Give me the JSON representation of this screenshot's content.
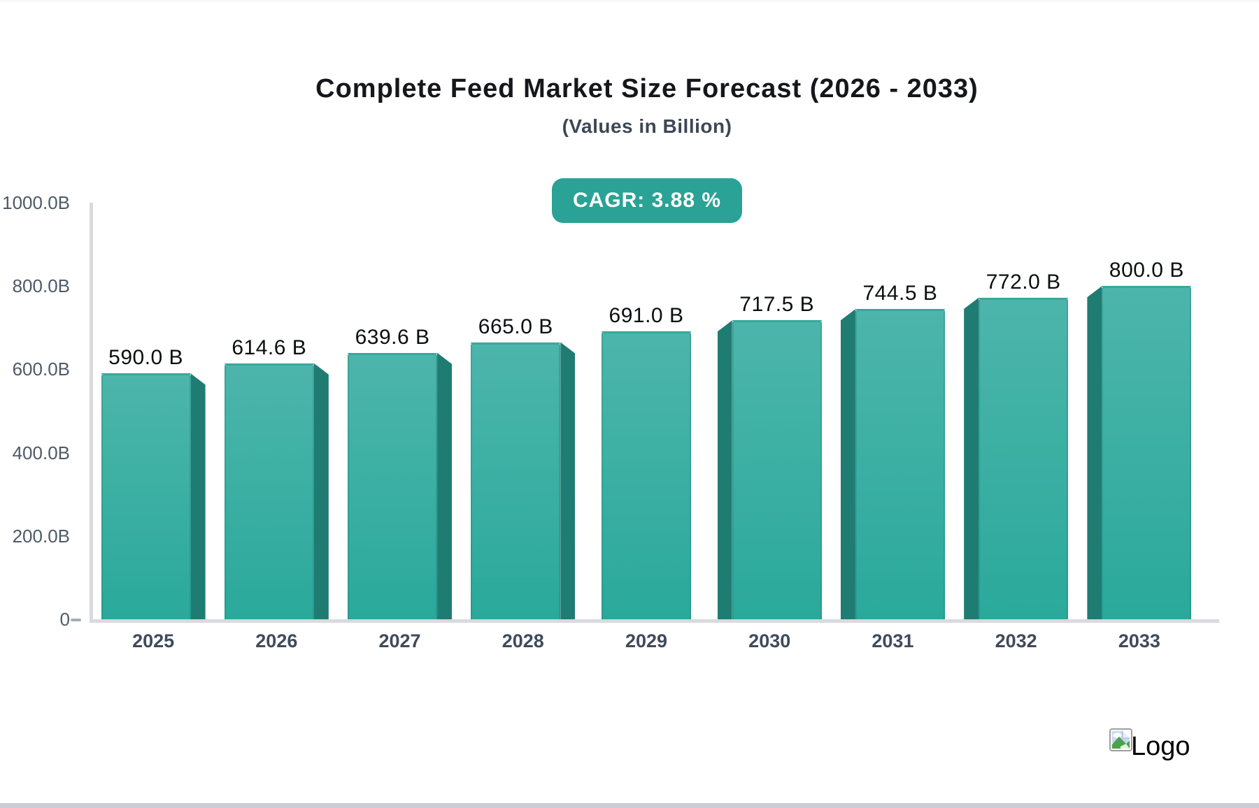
{
  "page": {
    "background": "#ffffff",
    "top_strip_color": "#f6f8fa",
    "bottom_bar_color": "#cccdd2"
  },
  "header": {
    "title": "Complete Feed Market Size Forecast (2026 - 2033)",
    "subtitle": "(Values in Billion)",
    "cagr_badge": "CAGR: 3.88 %",
    "badge_color": "#2aa296"
  },
  "footer": {
    "logo_alt_text": "Logo"
  },
  "chart_data": {
    "type": "bar",
    "title": "Complete Feed Market Size Forecast (2026 - 2033)",
    "subtitle": "(Values in Billion)",
    "unit": "Billion",
    "cagr_percent": 3.88,
    "categories": [
      "2025",
      "2026",
      "2027",
      "2028",
      "2029",
      "2030",
      "2031",
      "2032",
      "2033"
    ],
    "values": [
      590.0,
      614.6,
      639.6,
      665.0,
      691.0,
      717.5,
      744.5,
      772.0,
      800.0
    ],
    "bar_labels": [
      "590.0 B",
      "614.6 B",
      "639.6 B",
      "665.0 B",
      "691.0 B",
      "717.5 B",
      "744.5 B",
      "772.0 B",
      "800.0 B"
    ],
    "yticks": {
      "values": [
        1000,
        800,
        600,
        400,
        200,
        0
      ],
      "labels": [
        "1000.0B",
        "800.0B",
        "600.0B",
        "400.0B",
        "200.0B",
        "0"
      ]
    },
    "ylim": [
      0,
      1000
    ],
    "xlabel": "",
    "ylabel": "",
    "grid": false,
    "legend": null,
    "style_3d": "beveled columns, shaded side faces toward chart center",
    "colors": {
      "bar_face_top": "#4db5ab",
      "bar_face_bottom": "#2aa99b",
      "bar_side": "#1f7c73",
      "bar_edge": "#27948a",
      "axis": "#d9dade",
      "ytick_label": "#4e5a68",
      "xtick_label": "#3f4b5b",
      "value_label": "#0b0e10"
    }
  }
}
